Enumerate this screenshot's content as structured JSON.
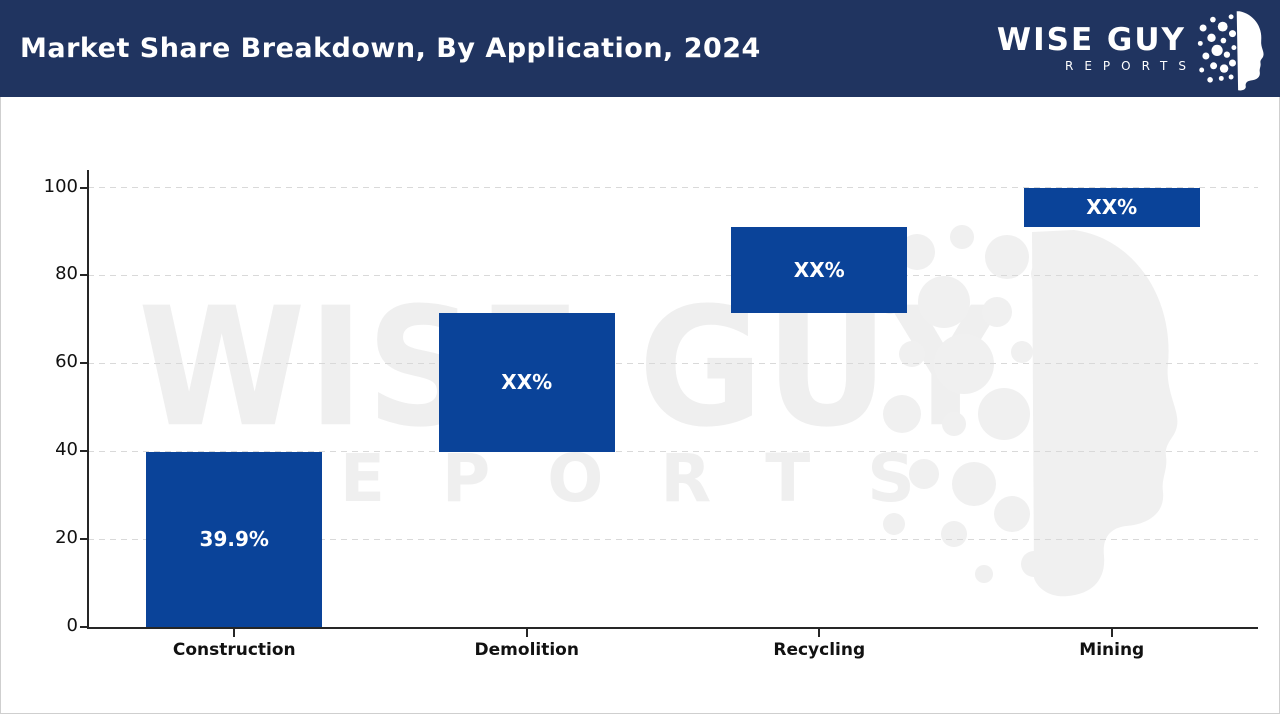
{
  "header": {
    "title": "Market Share Breakdown, By Application, 2024",
    "logo": {
      "line1": "WISE GUY",
      "line2": "REPORTS"
    }
  },
  "watermark": {
    "line1": "WISE GUY",
    "line2": "REPORTS"
  },
  "chart_data": {
    "type": "bar",
    "subtype": "waterfall",
    "title": "Market Share Breakdown, By Application, 2024",
    "categories": [
      "Construction",
      "Demolition",
      "Recycling",
      "Mining"
    ],
    "segments": [
      {
        "category": "Construction",
        "start": 0,
        "end": 39.9,
        "value": 39.9,
        "label": "39.9%"
      },
      {
        "category": "Demolition",
        "start": 39.9,
        "end": 71.4,
        "value": 31.5,
        "label": "XX%"
      },
      {
        "category": "Recycling",
        "start": 71.4,
        "end": 91.0,
        "value": 19.6,
        "label": "XX%"
      },
      {
        "category": "Mining",
        "start": 91.0,
        "end": 100.0,
        "value": 9.0,
        "label": "XX%"
      }
    ],
    "y_ticks": [
      0,
      20,
      40,
      60,
      80,
      100
    ],
    "ylim": [
      0,
      104
    ],
    "grid": true,
    "legend": false,
    "bar_color": "#0a4399",
    "bar_label_color": "#ffffff",
    "gridline_color": "#d9d9d9",
    "axis_color": "#262626"
  },
  "colors": {
    "header_bg": "#203460",
    "accent_blue": "#0a4399",
    "watermark_gray": "#efefef",
    "frame_border": "#cfcfcf"
  }
}
